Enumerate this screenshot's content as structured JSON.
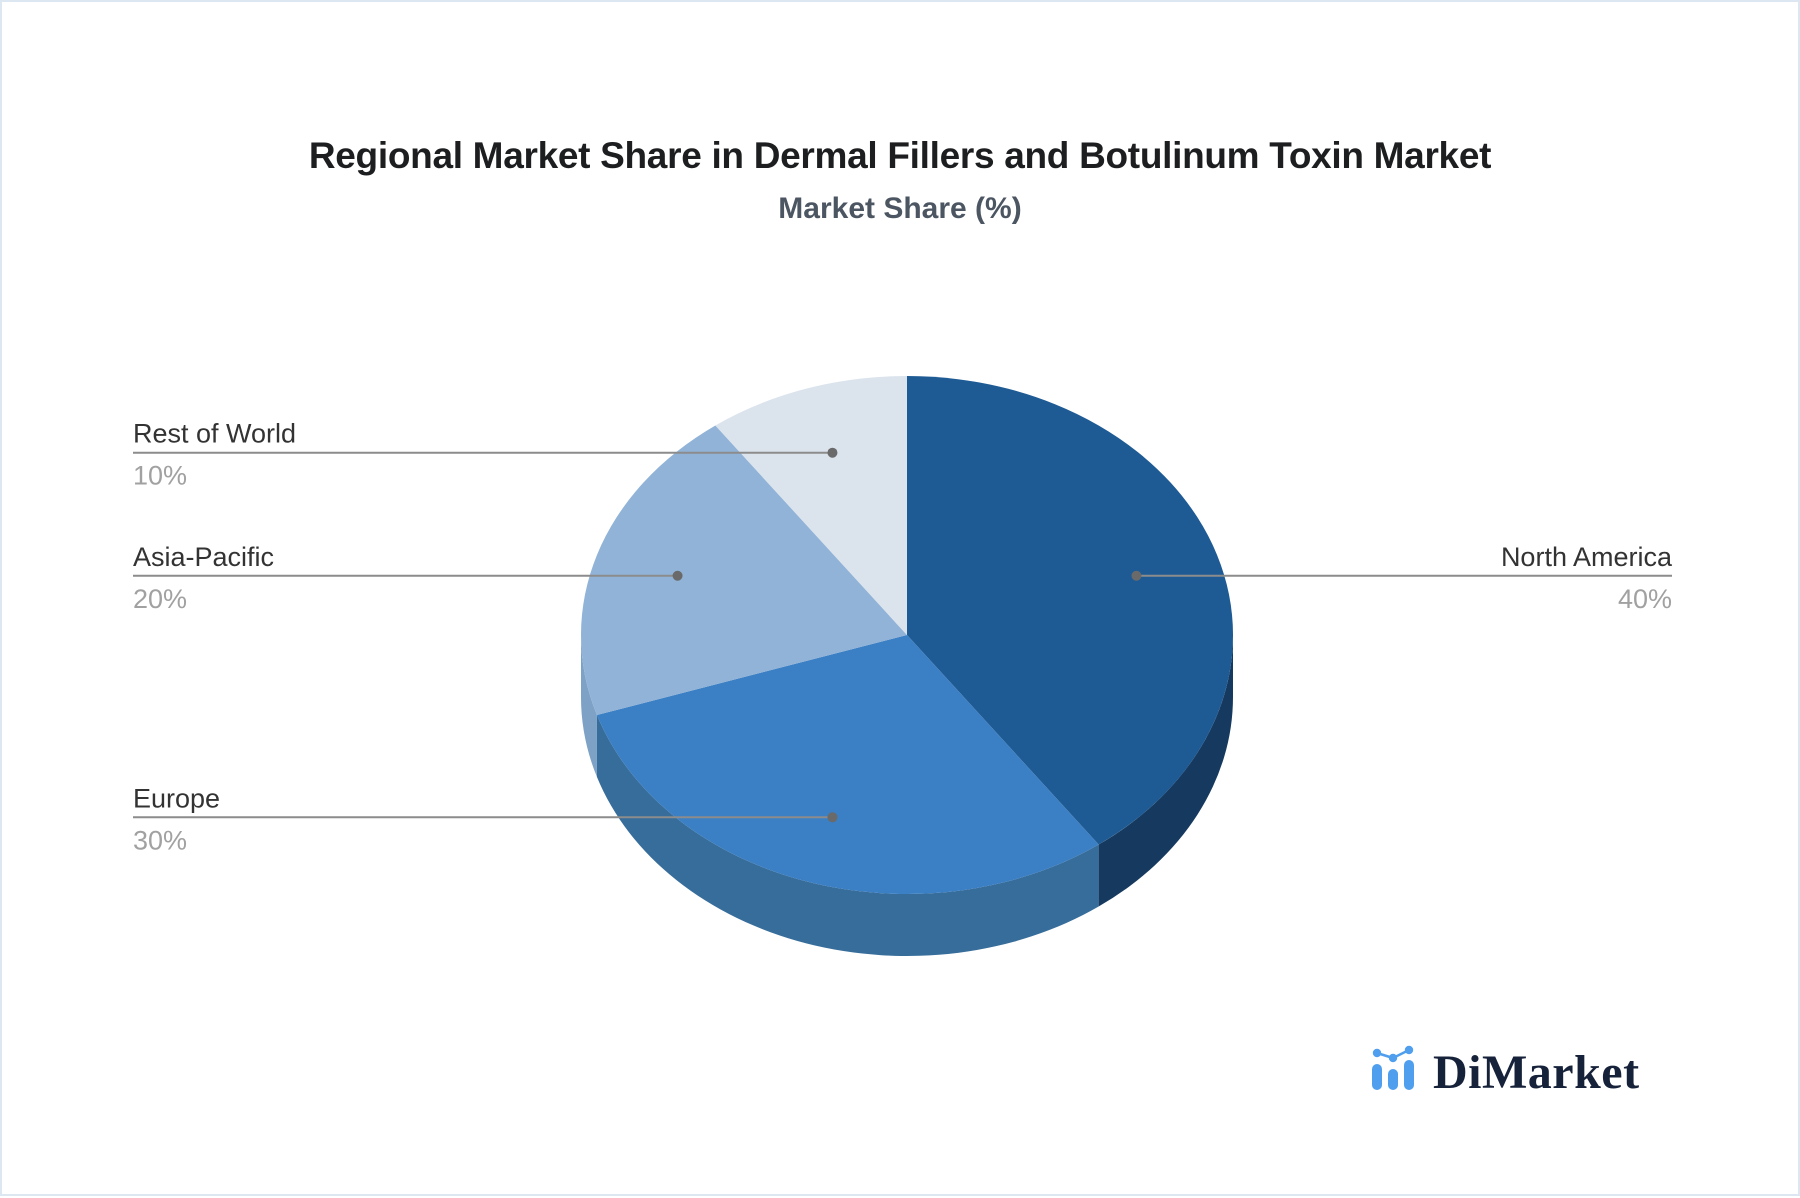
{
  "window": {
    "background": "#ffffff",
    "border_color": "#dde7f2"
  },
  "header": {
    "title": "Regional Market Share in Dermal Fillers and Botulinum Toxin Market",
    "subtitle": "Market Share (%)",
    "title_color": "#1d1e20",
    "subtitle_color": "#4c5662"
  },
  "leader_style": {
    "line_color": "#8c8c8c",
    "dot_color": "#6a6a6a",
    "label_color": "#333333",
    "value_color": "#a1a1a1"
  },
  "logo": {
    "text": "DiMarket",
    "icon": "bar-line-chart-icon",
    "icon_color": "#4f9fee",
    "text_color": "#16213a"
  },
  "chart_data": {
    "type": "pie",
    "style": "3d",
    "title": "Regional Market Share in Dermal Fillers and Botulinum Toxin Market",
    "subtitle": "Market Share (%)",
    "unit": "%",
    "start_angle_deg": 0,
    "direction": "clockwise",
    "legend_position": "leader-labels",
    "slices": [
      {
        "label": "North America",
        "value": 40,
        "display_value": "40%",
        "color": "#1e5a94",
        "side_color": "#163a5f",
        "label_side": "right"
      },
      {
        "label": "Europe",
        "value": 30,
        "display_value": "30%",
        "color": "#3b7fc4",
        "side_color": "#376d9b",
        "label_side": "left"
      },
      {
        "label": "Asia-Pacific",
        "value": 20,
        "display_value": "20%",
        "color": "#91b3d7",
        "side_color": "#7ea1c6",
        "label_side": "left"
      },
      {
        "label": "Rest of World",
        "value": 10,
        "display_value": "10%",
        "color": "#dbe3ed",
        "side_color": "#c6d1e0",
        "label_side": "left"
      }
    ]
  }
}
